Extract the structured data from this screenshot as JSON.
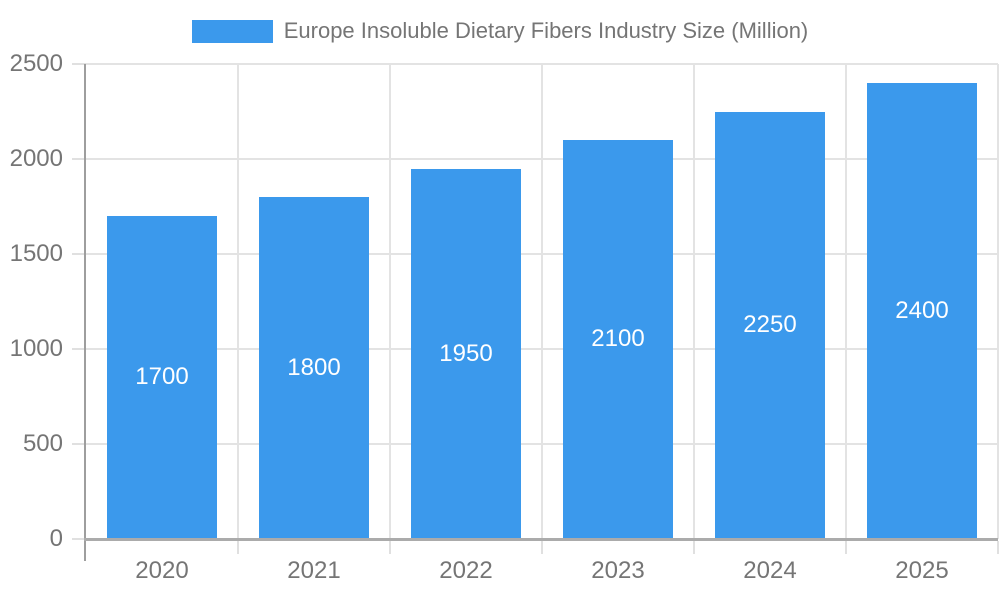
{
  "legend": {
    "label": "Europe Insoluble Dietary Fibers Industry Size (Million)"
  },
  "chart_data": {
    "type": "bar",
    "title": "Europe Insoluble Dietary Fibers Industry Size (Million)",
    "categories": [
      "2020",
      "2021",
      "2022",
      "2023",
      "2024",
      "2025"
    ],
    "values": [
      1700,
      1800,
      1950,
      2100,
      2250,
      2400
    ],
    "bar_labels": [
      "1700",
      "1800",
      "1950",
      "2100",
      "2250",
      "2400"
    ],
    "xlabel": "",
    "ylabel": "",
    "ylim": [
      0,
      2500
    ],
    "y_ticks": [
      0,
      500,
      1000,
      1500,
      2000,
      2500
    ],
    "grid": true,
    "legend_position": "top",
    "bar_color": "#3B99EC",
    "label_color": "#757575",
    "bar_label_color": "#ffffff",
    "grid_color": "#e3e3e3",
    "axis_color": "#9e9e9e"
  }
}
